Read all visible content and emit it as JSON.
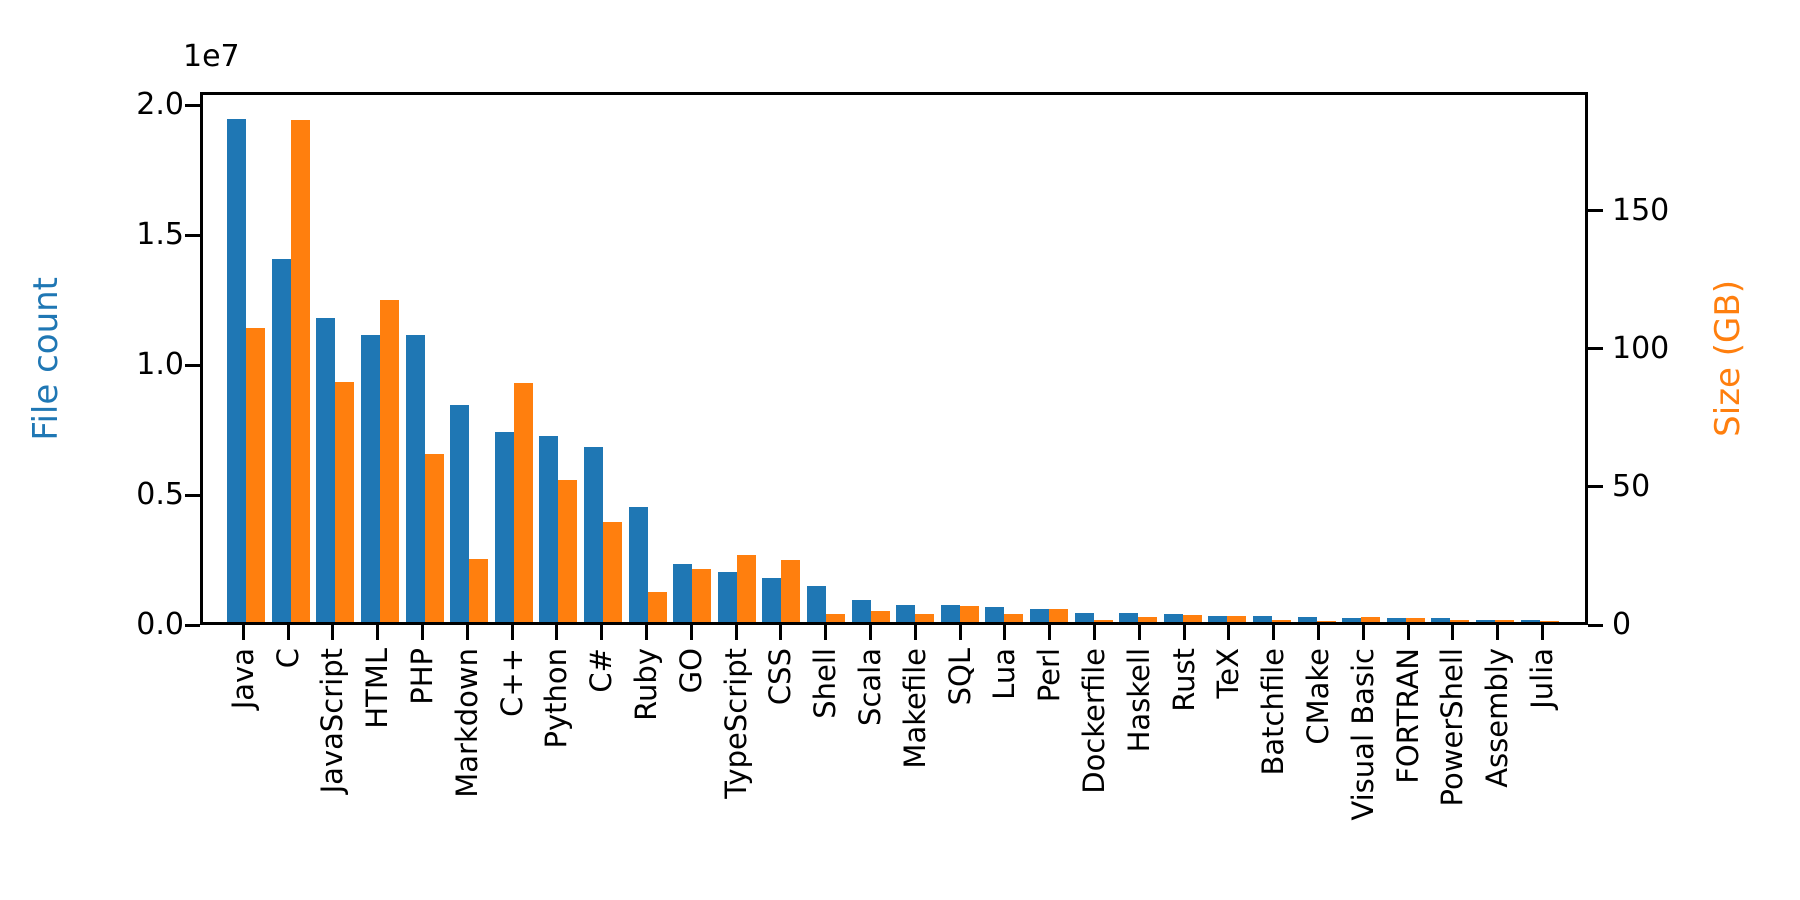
{
  "chart_data": {
    "type": "bar",
    "title": "",
    "categories": [
      "Java",
      "C",
      "JavaScript",
      "HTML",
      "PHP",
      "Markdown",
      "C++",
      "Python",
      "C#",
      "Ruby",
      "GO",
      "TypeScript",
      "CSS",
      "Shell",
      "Scala",
      "Makefile",
      "SQL",
      "Lua",
      "Perl",
      "Dockerfile",
      "Haskell",
      "Rust",
      "TeX",
      "Batchfile",
      "CMake",
      "Visual Basic",
      "FORTRAN",
      "PowerShell",
      "Assembly",
      "Julia"
    ],
    "series": [
      {
        "name": "File count",
        "axis": "left",
        "color": "#1f77b4",
        "values": [
          19550000,
          14140000,
          11840000,
          11180000,
          11180000,
          8460000,
          7380000,
          7230000,
          6810000,
          4470000,
          2270000,
          1940000,
          1730000,
          1390000,
          840000,
          680000,
          660000,
          580000,
          500000,
          370000,
          340000,
          320000,
          250000,
          240000,
          180000,
          160000,
          140000,
          140000,
          80000,
          60000
        ]
      },
      {
        "name": "Size (GB)",
        "axis": "right",
        "color": "#ff7f0e",
        "values": [
          107.7,
          183.8,
          87.8,
          118.1,
          61.4,
          23.1,
          87.7,
          52.0,
          36.8,
          11.0,
          19.3,
          24.6,
          22.7,
          3.0,
          3.9,
          2.9,
          5.7,
          2.8,
          4.7,
          0.7,
          1.9,
          2.7,
          2.2,
          0.7,
          0.5,
          1.9,
          1.6,
          0.7,
          0.8,
          0.3
        ]
      }
    ],
    "left_axis": {
      "label": "File count",
      "offset_text": "1e7",
      "tick_values": [
        0,
        5000000,
        10000000,
        15000000,
        20000000
      ],
      "tick_labels": [
        "0.0",
        "0.5",
        "1.0",
        "1.5",
        "2.0"
      ],
      "max": 20500000
    },
    "right_axis": {
      "label": "Size (GB)",
      "tick_values": [
        0,
        50,
        100,
        150
      ],
      "tick_labels": [
        "0",
        "50",
        "100",
        "150"
      ],
      "max": 193
    },
    "xlabel_rotation": 90,
    "grid": false,
    "legend_visible": false,
    "background_color": "#ffffff",
    "spine_color": "#000000"
  }
}
